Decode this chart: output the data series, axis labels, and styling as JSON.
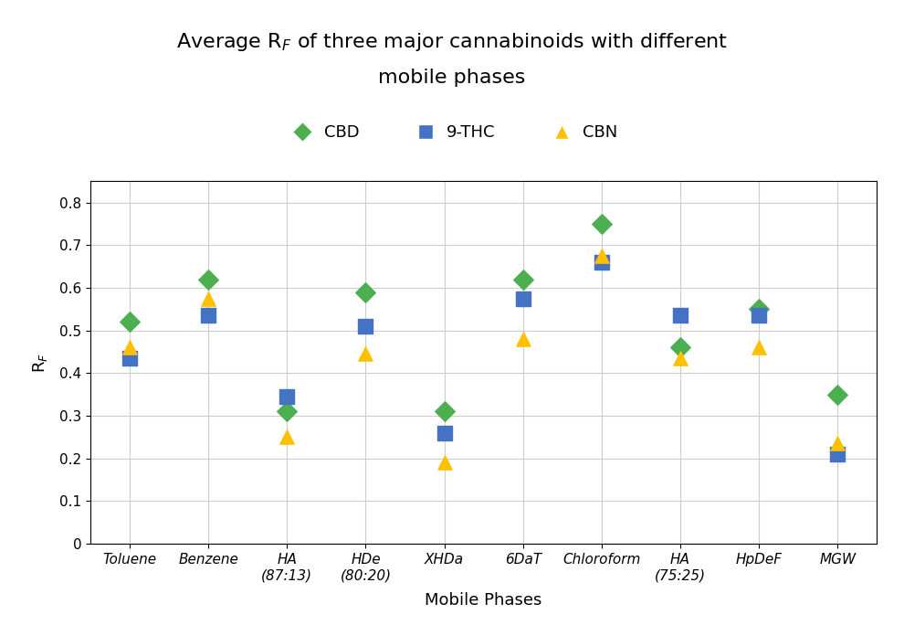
{
  "xlabel": "Mobile Phases",
  "ylabel": "R$_F$",
  "categories": [
    "Toluene",
    "Benzene",
    "HA\n(87:13)",
    "HDe\n(80:20)",
    "XHDa",
    "6DaT",
    "Chloroform",
    "HA\n(75:25)",
    "HpDeF",
    "MGW"
  ],
  "CBD": [
    0.52,
    0.62,
    0.31,
    0.59,
    0.31,
    0.62,
    0.75,
    0.46,
    0.55,
    0.35
  ],
  "THC": [
    0.435,
    0.535,
    0.345,
    0.51,
    0.26,
    0.575,
    0.66,
    0.535,
    0.535,
    0.21
  ],
  "CBN": [
    0.46,
    0.575,
    0.25,
    0.445,
    0.19,
    0.48,
    0.675,
    0.435,
    0.46,
    0.235
  ],
  "CBD_color": "#4CAF50",
  "THC_color": "#4472C4",
  "CBN_color": "#FFC000",
  "ylim": [
    0,
    0.85
  ],
  "yticks": [
    0,
    0.1,
    0.2,
    0.3,
    0.4,
    0.5,
    0.6,
    0.7,
    0.8
  ],
  "marker_size": 120,
  "grid_color": "#cccccc",
  "title_fontsize": 16,
  "axis_fontsize": 13,
  "tick_fontsize": 11,
  "legend_fontsize": 13
}
